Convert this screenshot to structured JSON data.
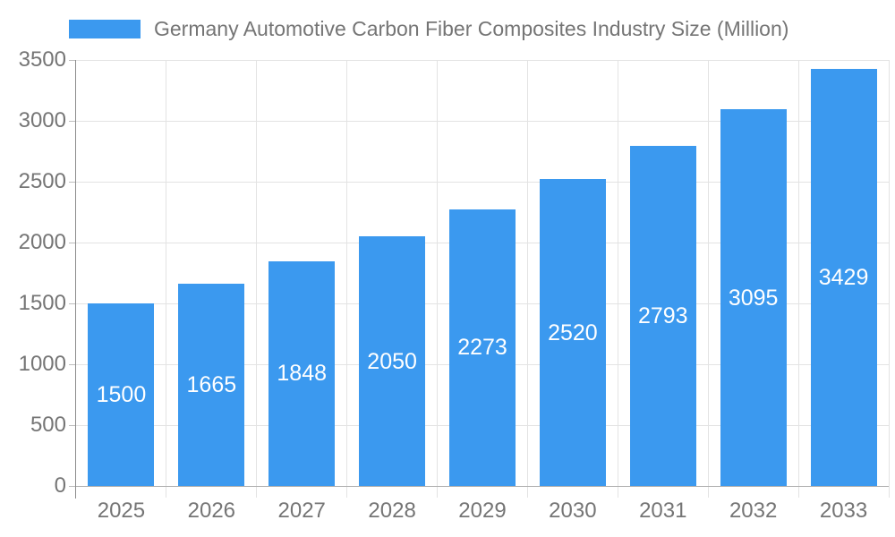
{
  "legend": {
    "series_label": "Germany Automotive Carbon Fiber Composites Industry Size (Million)"
  },
  "chart_data": {
    "type": "bar",
    "title": "Germany Automotive Carbon Fiber Composites Industry Size (Million)",
    "categories": [
      "2025",
      "2026",
      "2027",
      "2028",
      "2029",
      "2030",
      "2031",
      "2032",
      "2033"
    ],
    "series": [
      {
        "name": "Germany Automotive Carbon Fiber Composites Industry Size (Million)",
        "values": [
          1500,
          1665,
          1848,
          2050,
          2273,
          2520,
          2793,
          3095,
          3429
        ]
      }
    ],
    "values": [
      1500,
      1665,
      1848,
      2050,
      2273,
      2520,
      2793,
      3095,
      3429
    ],
    "value_labels": [
      "1500",
      "1665",
      "1848",
      "2050",
      "2273",
      "2520",
      "2793",
      "3095",
      "3429"
    ],
    "xlabel": "",
    "ylabel": "",
    "ylim": [
      0,
      3500
    ],
    "ytick_step": 500,
    "yticks": [
      0,
      500,
      1000,
      1500,
      2000,
      2500,
      3000,
      3500
    ],
    "grid": true,
    "legend_position": "top-left",
    "bar_labels_inside": true,
    "colors": {
      "bar": "#3B99EF",
      "value_label": "#ffffff",
      "axis_text": "#757575",
      "legend_text": "#757575",
      "grid": "#e3e3e3",
      "y_axis_line": "#8c8c8c",
      "x_axis_line": "#b0b0b0",
      "tick_mark": "#bdbdbd",
      "background": "#ffffff"
    }
  }
}
